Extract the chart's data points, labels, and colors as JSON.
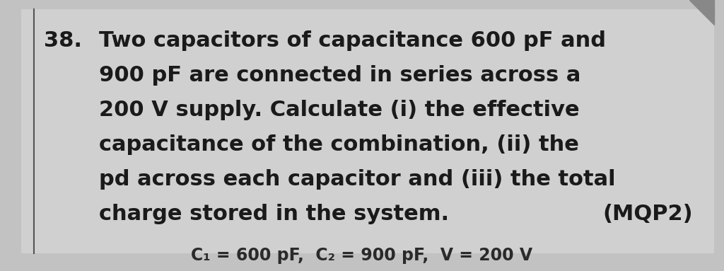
{
  "outer_bg": "#c2c2c2",
  "box_bg": "#d0d0d0",
  "left_line_color": "#555555",
  "text_color": "#1a1a1a",
  "question_number": "38.",
  "main_text_lines": [
    "Two capacitors of capacitance 600 pF and",
    "900 pF are connected in series across a",
    "200 V supply. Calculate (i) the effective",
    "capacitance of the combination, (ii) the",
    "pd across each capacitor and (iii) the total",
    "charge stored in the system."
  ],
  "mark_text": "(MQP2)",
  "bottom_partial": "C₁ = 600 pF,  C₂ = 900 pF,  V = 200 V",
  "font_size_main": 22,
  "font_size_mark": 22,
  "font_size_bottom": 17,
  "top_arrow_color": "#555555"
}
